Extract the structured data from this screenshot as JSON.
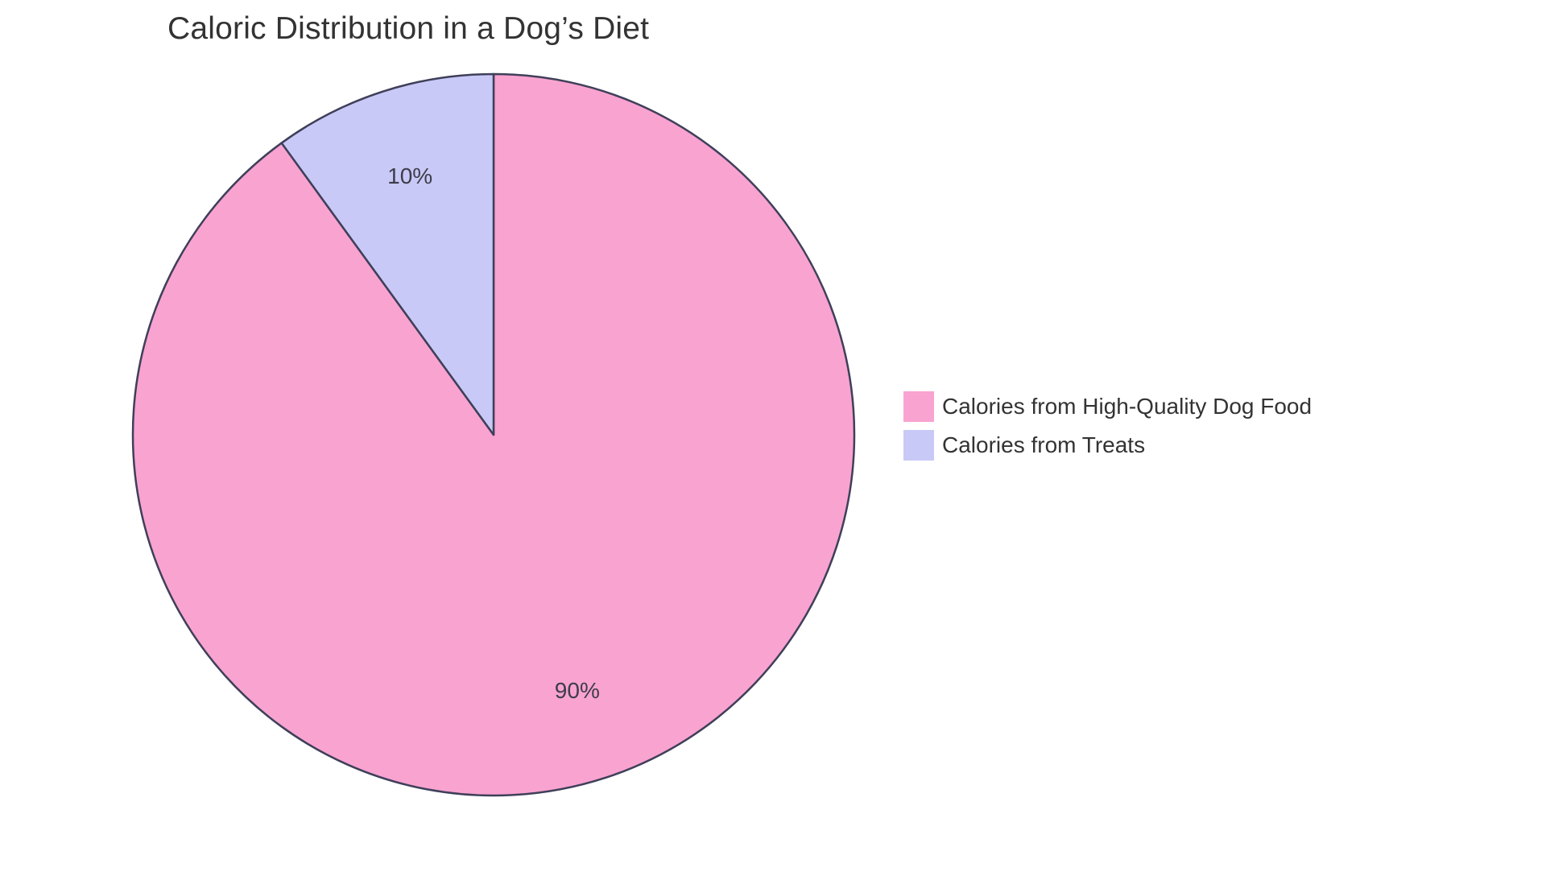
{
  "chart_data": {
    "type": "pie",
    "title": "Caloric Distribution in a Dog’s Diet",
    "labels": [
      "Calories from High-Quality Dog Food",
      "Calories from Treats"
    ],
    "values": [
      90,
      10
    ],
    "pct_labels": [
      "90%",
      "10%"
    ],
    "colors": [
      "#F9A3D0",
      "#C9C9F7"
    ],
    "stroke_color": "#3f3f5a",
    "label_color": "#3d3d4a",
    "legend_position": "right",
    "start_angle_deg": 0,
    "direction": "clockwise"
  }
}
